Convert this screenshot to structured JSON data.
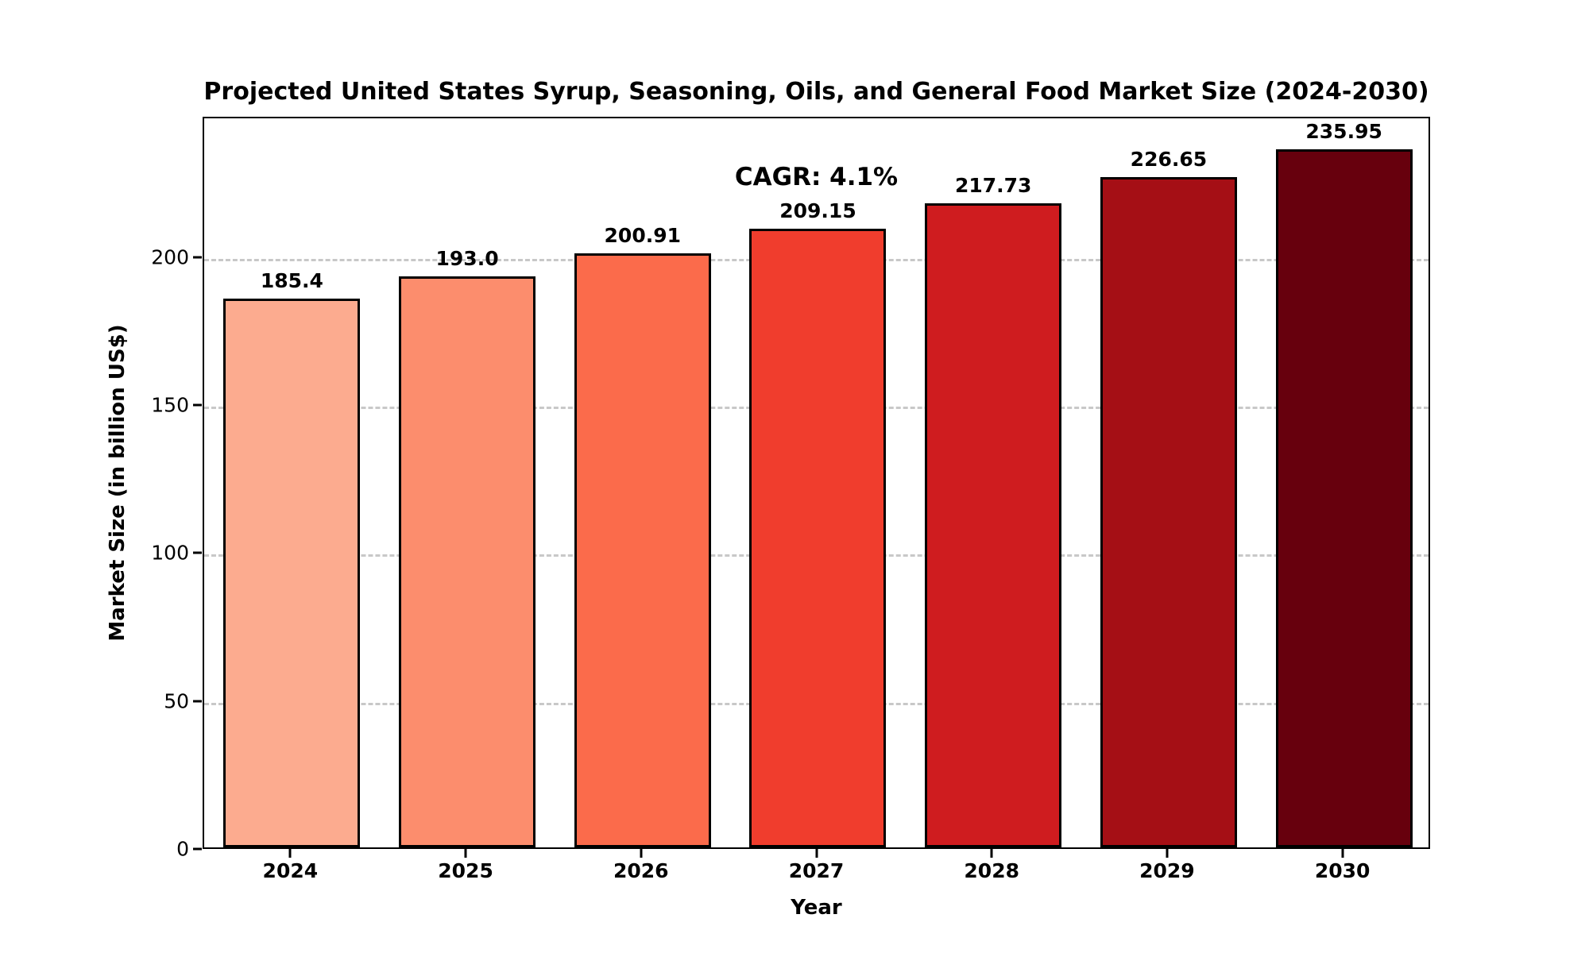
{
  "chart_data": {
    "type": "bar",
    "title": "Projected United States Syrup, Seasoning, Oils, and General Food Market Size (2024-2030)",
    "xlabel": "Year",
    "ylabel": "Market Size (in billion US$)",
    "annotation": "CAGR: 4.1%",
    "categories": [
      "2024",
      "2025",
      "2026",
      "2027",
      "2028",
      "2029",
      "2030"
    ],
    "values": [
      185.4,
      193.0,
      200.91,
      209.15,
      217.73,
      226.65,
      235.95
    ],
    "value_labels": [
      "185.4",
      "193.0",
      "200.91",
      "209.15",
      "217.73",
      "226.65",
      "235.95"
    ],
    "bar_colors": [
      "#fcab8f",
      "#fc8d6d",
      "#fb6b4b",
      "#f03d2d",
      "#cf1c1f",
      "#a50f15",
      "#67000d"
    ],
    "bar_edge_color": "#000000",
    "ylim": [
      0,
      247.5
    ],
    "yticks": [
      0,
      50,
      100,
      150,
      200
    ],
    "grid": "dashed horizontal",
    "gridline_color": "#c8c8c8",
    "legend": "none"
  }
}
